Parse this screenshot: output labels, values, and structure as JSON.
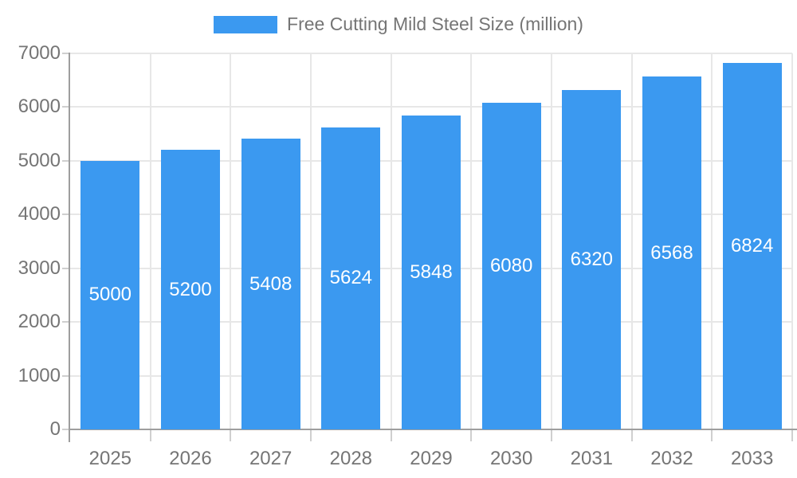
{
  "chart_data": {
    "type": "bar",
    "title": "Free Cutting Mild Steel Size (million)",
    "categories": [
      "2025",
      "2026",
      "2027",
      "2028",
      "2029",
      "2030",
      "2031",
      "2032",
      "2033"
    ],
    "values": [
      5000,
      5200,
      5408,
      5624,
      5848,
      6080,
      6320,
      6568,
      6824
    ],
    "xlabel": "",
    "ylabel": "",
    "ylim": [
      0,
      7000
    ],
    "y_ticks": [
      0,
      1000,
      2000,
      3000,
      4000,
      5000,
      6000,
      7000
    ],
    "grid": true,
    "legend_position": "top",
    "value_label_placement": "inside-center"
  },
  "colors": {
    "bar": "#3B99F0",
    "axis_label": "#757575",
    "legend_label": "#757575",
    "value_label": "#FFFFFF",
    "axis_line": "#9E9E9E",
    "gridline": "#E7E7E7",
    "tick": "#CFCFCF",
    "background": "#FFFFFF"
  }
}
